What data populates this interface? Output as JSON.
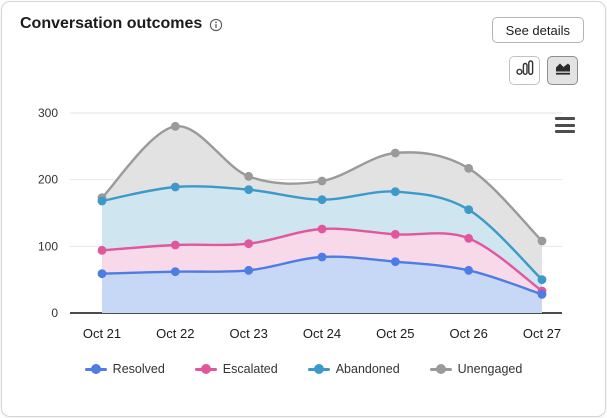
{
  "header": {
    "title": "Conversation outcomes",
    "see_details_label": "See details"
  },
  "toolbar": {
    "column_chart_icon": "column-chart-icon",
    "area_chart_icon": "area-chart-icon",
    "selected_chart_type": "area",
    "context_menu_icon": "hamburger-menu-icon"
  },
  "chart_data": {
    "type": "area",
    "title": "Conversation outcomes",
    "categories": [
      "Oct 21",
      "Oct 22",
      "Oct 23",
      "Oct 24",
      "Oct 25",
      "Oct 26",
      "Oct 27"
    ],
    "series": [
      {
        "name": "Resolved",
        "color": "#4d7ce2",
        "fill": "#c7d7f6",
        "values": [
          59,
          62,
          64,
          84,
          77,
          64,
          28
        ]
      },
      {
        "name": "Escalated",
        "color": "#e0579e",
        "fill": "#f8d9e9",
        "values": [
          94,
          102,
          104,
          126,
          118,
          112,
          33
        ]
      },
      {
        "name": "Abandoned",
        "color": "#3d99c9",
        "fill": "#cfe6f1",
        "values": [
          168,
          189,
          185,
          170,
          182,
          155,
          50
        ]
      },
      {
        "name": "Unengaged",
        "color": "#9a9a9a",
        "fill": "#e2e2e2",
        "values": [
          173,
          280,
          205,
          198,
          240,
          217,
          108
        ]
      }
    ],
    "ylim": [
      0,
      300
    ],
    "yticks": [
      0,
      100,
      200,
      300
    ],
    "grid": true,
    "legend_position": "bottom",
    "axis_color": "#333333",
    "gridline_color": "#e6e6e6",
    "tick_label_color": "#333333"
  }
}
